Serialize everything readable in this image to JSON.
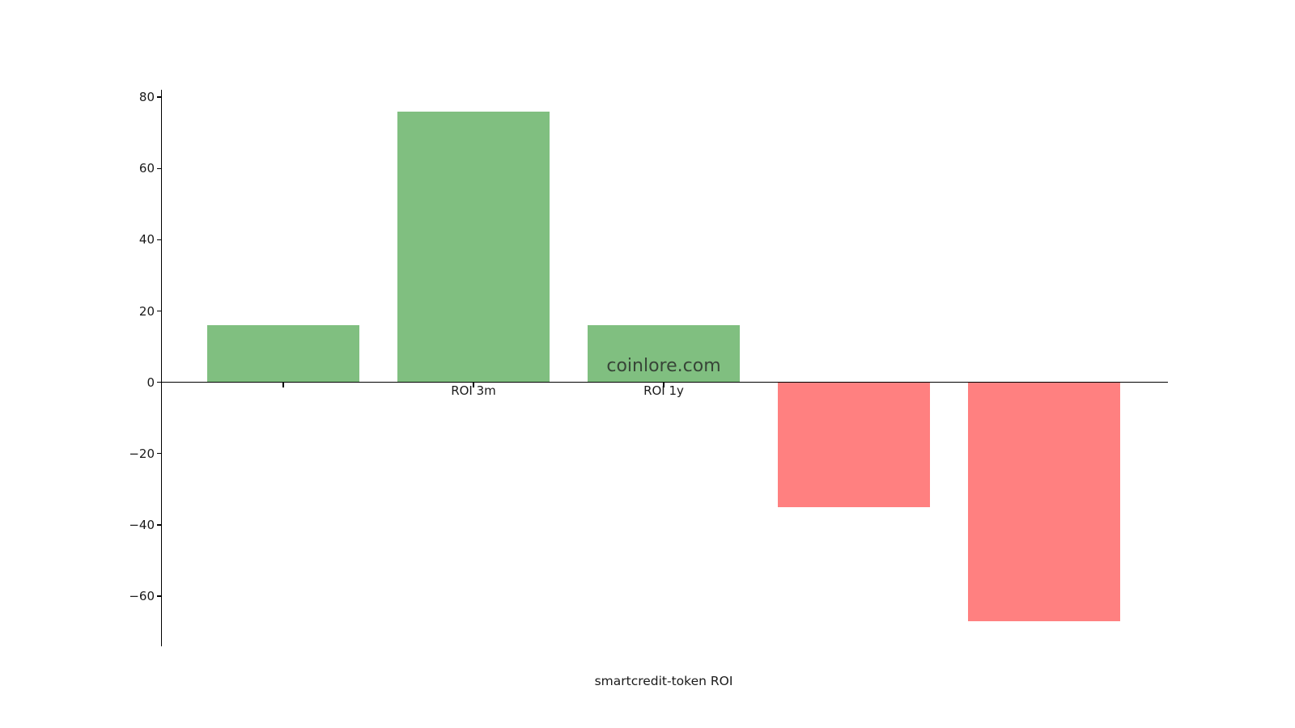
{
  "page": {
    "background": "#ffffff"
  },
  "watermark": {
    "text": "coinlore.com",
    "color": "#3c3c3c"
  },
  "chart_data": {
    "type": "bar",
    "title": "smartcredit-token ROI",
    "categories": [
      "",
      "ROI 3m",
      "ROI 1y",
      "",
      ""
    ],
    "values": [
      16,
      76,
      16,
      -35,
      -67
    ],
    "positive_color": "#80bf80",
    "negative_color": "#ff8080",
    "axis_color": "#000000",
    "tick_label_color": "#1a1a1a",
    "yticks": [
      80,
      60,
      40,
      20,
      0,
      -20,
      -40,
      -60
    ],
    "ylim": [
      -74,
      82
    ],
    "xlabel": "",
    "ylabel": "",
    "grid": false,
    "legend_position": "none"
  }
}
